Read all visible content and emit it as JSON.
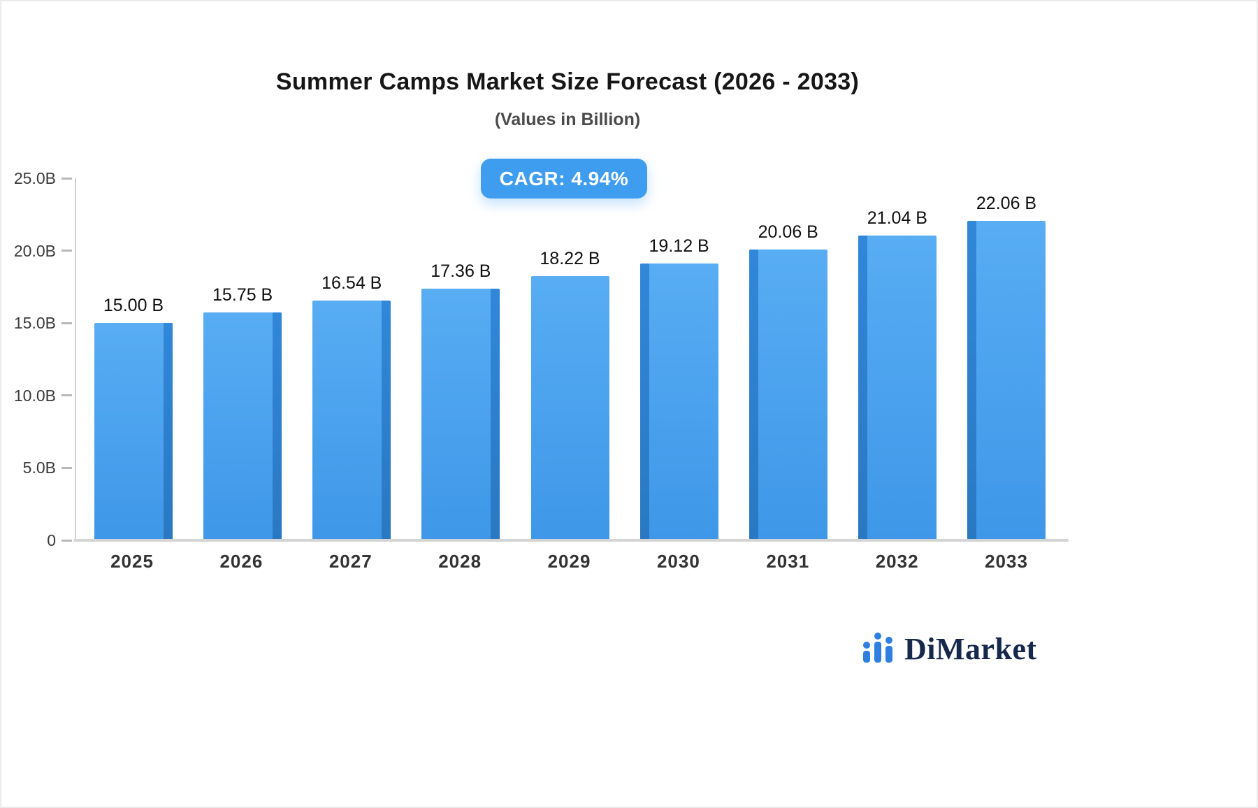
{
  "title": "Summer Camps Market Size Forecast (2026 - 2033)",
  "subtitle": "(Values in Billion)",
  "badge": {
    "label": "CAGR: 4.94%",
    "bg_color": "#3f9df0",
    "text_color": "#ffffff"
  },
  "chart_data": {
    "type": "bar",
    "title": "Summer Camps Market Size Forecast (2026 - 2033)",
    "subtitle": "(Values in Billion)",
    "xlabel": "",
    "ylabel": "",
    "unit": "Billion",
    "categories": [
      "2025",
      "2026",
      "2027",
      "2028",
      "2029",
      "2030",
      "2031",
      "2032",
      "2033"
    ],
    "values": [
      15.0,
      15.75,
      16.54,
      17.36,
      18.22,
      19.12,
      20.06,
      21.04,
      22.06
    ],
    "bar_labels": [
      "15.00 B",
      "15.75 B",
      "16.54 B",
      "17.36 B",
      "18.22 B",
      "19.12 B",
      "20.06 B",
      "21.04 B",
      "22.06 B"
    ],
    "ylim": [
      0,
      25
    ],
    "yticks": [
      {
        "value": 25,
        "label": "25.0B"
      },
      {
        "value": 20,
        "label": "20.0B"
      },
      {
        "value": 15,
        "label": "15.0B"
      },
      {
        "value": 10,
        "label": "10.0B"
      },
      {
        "value": 5,
        "label": "5.0B"
      },
      {
        "value": 0,
        "label": "0"
      }
    ],
    "grid": false,
    "legend": false,
    "annotations": [
      "CAGR: 4.94%"
    ],
    "bar_color_main": "#42a0ee",
    "bar_color_side": "#2b7dc9"
  },
  "logo": {
    "text": "DiMarket",
    "icon": "bar-chart-icon",
    "icon_color": "#2e7fe0",
    "text_color": "#16294d"
  }
}
